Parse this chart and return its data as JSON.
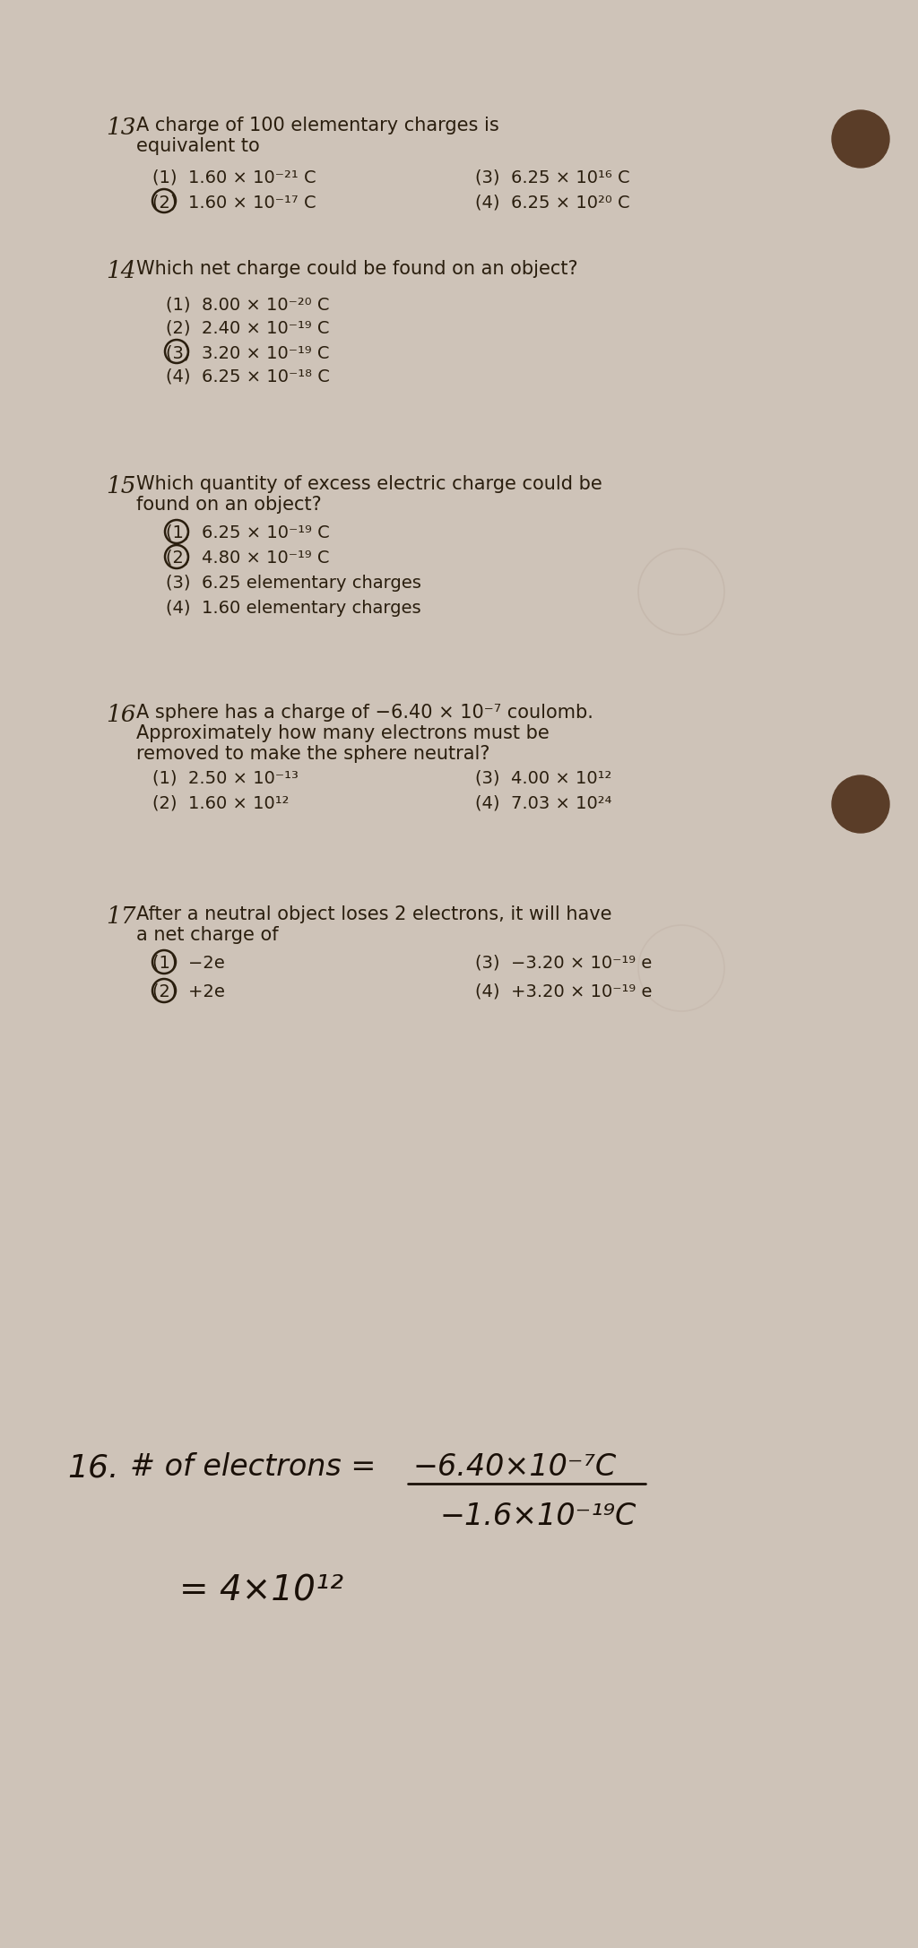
{
  "bg_color": "#cec3b8",
  "text_color": "#2a1e0e",
  "q13_num": "13",
  "q13_text": "A charge of 100 elementary charges is\nequivalent to",
  "q13_opts_left": [
    "(1)  1.60 × 10⁻²¹ C",
    "(2)  1.60 × 10⁻¹⁷ C"
  ],
  "q13_opts_right": [
    "(3)  6.25 × 10¹⁶ C",
    "(4)  6.25 × 10²⁰ C"
  ],
  "q14_num": "14",
  "q14_text": "Which net charge could be found on an object?",
  "q14_opts": [
    "(1)  8.00 × 10⁻²⁰ C",
    "(2)  2.40 × 10⁻¹⁹ C",
    "(3)  3.20 × 10⁻¹⁹ C",
    "(4)  6.25 × 10⁻¹⁸ C"
  ],
  "q15_num": "15",
  "q15_text": "Which quantity of excess electric charge could be\nfound on an object?",
  "q15_opts": [
    "(1)  6.25 × 10⁻¹⁹ C",
    "(2)  4.80 × 10⁻¹⁹ C",
    "(3)  6.25 elementary charges",
    "(4)  1.60 elementary charges"
  ],
  "q16_num": "16",
  "q16_text": "A sphere has a charge of −6.40 × 10⁻⁷ coulomb.\nApproximately how many electrons must be\nremoved to make the sphere neutral?",
  "q16_opts_left": [
    "(1)  2.50 × 10⁻¹³",
    "(2)  1.60 × 10¹²"
  ],
  "q16_opts_right": [
    "(3)  4.00 × 10¹²",
    "(4)  7.03 × 10²⁴"
  ],
  "q17_num": "17",
  "q17_text": "After a neutral object loses 2 electrons, it will have\na net charge of",
  "q17_opts_left": [
    "(1)  −2e",
    "(2)  +2e"
  ],
  "q17_opts_right": [
    "(3)  −3.20 × 10⁻¹⁹ e",
    "(4)  +3.20 × 10⁻¹⁹ e"
  ],
  "dot_color": "#5a3d28",
  "circle_color": "#2a1e0e",
  "hw_color": "#1a1008"
}
